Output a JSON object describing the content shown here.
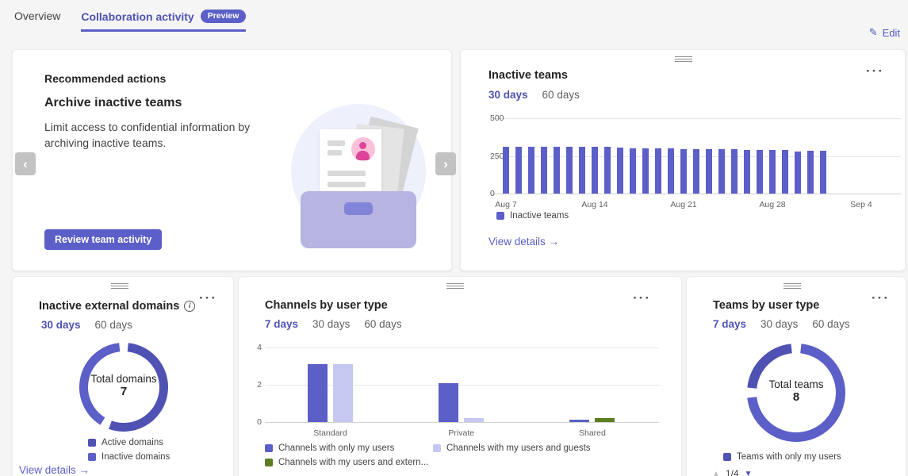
{
  "colors": {
    "accent": "#5b5fc7",
    "accent_dark": "#4f52b2",
    "lavender": "#c5c8f0",
    "green": "#5c7d21",
    "page_bg": "#f5f5f5"
  },
  "header": {
    "tabs": [
      {
        "label": "Overview"
      },
      {
        "label": "Collaboration activity",
        "badge": "Preview"
      }
    ],
    "edit_icon": "✎",
    "edit_label": "Edit"
  },
  "recommended_card": {
    "section_title": "Recommended actions",
    "title": "Archive inactive teams",
    "description": "Limit access to confidential information by archiving inactive teams.",
    "button_label": "Review team activity",
    "prev_icon": "‹",
    "next_icon": "›"
  },
  "inactive_teams_card": {
    "title": "Inactive teams",
    "more_icon": "···",
    "periods": [
      "30 days",
      "60 days"
    ],
    "active_period": "30 days",
    "legend": [
      {
        "label": "Inactive teams",
        "color": "#5b5fc7"
      }
    ],
    "view_details": "View details →"
  },
  "domains_card": {
    "title": "Inactive external domains",
    "info_icon": "i",
    "more_icon": "···",
    "periods": [
      "30 days",
      "60 days"
    ],
    "active_period": "30 days",
    "center_label": "Total domains",
    "center_value": "7",
    "legend": [
      {
        "label": "Active domains",
        "color": "#4f52b2"
      },
      {
        "label": "Inactive domains",
        "color": "#5b5fc7"
      }
    ],
    "view_details": "View details →"
  },
  "channels_card": {
    "title": "Channels by user type",
    "more_icon": "···",
    "periods": [
      "7 days",
      "30 days",
      "60 days"
    ],
    "active_period": "7 days",
    "legend": [
      {
        "label": "Channels with only my users",
        "color": "#5b5fc7"
      },
      {
        "label": "Channels with my users and guests",
        "color": "#c5c8f0"
      },
      {
        "label": "Channels with my users and extern...",
        "color": "#5c7d21"
      }
    ]
  },
  "teams_card": {
    "title": "Teams by user type",
    "more_icon": "···",
    "periods": [
      "7 days",
      "30 days",
      "60 days"
    ],
    "active_period": "7 days",
    "center_label": "Total teams",
    "center_value": "8",
    "legend": [
      {
        "label": "Teams with only my users",
        "color": "#4f52b2"
      }
    ],
    "pagination": {
      "up_icon": "▲",
      "page": "1/4",
      "down_icon": "▼"
    }
  },
  "chart_data": [
    {
      "type": "bar",
      "title": "Inactive teams",
      "period_shown": "30 days",
      "series_name": "Inactive teams",
      "color": "#5b5fc7",
      "values": [
        310,
        310,
        310,
        310,
        310,
        310,
        310,
        310,
        310,
        305,
        300,
        300,
        300,
        298,
        296,
        295,
        295,
        294,
        293,
        292,
        291,
        289,
        287,
        280,
        283,
        286
      ],
      "x_tick_labels": [
        "Aug 7",
        "Aug 14",
        "Aug 21",
        "Aug 28",
        "Sep 4"
      ],
      "x_tick_positions": [
        0,
        7,
        14,
        21,
        28
      ],
      "total_slots": 29,
      "ylim": [
        0,
        500
      ],
      "yticks": [
        0,
        250,
        500
      ],
      "legend_position": "bottom"
    },
    {
      "type": "pie",
      "variant": "donut",
      "title": "Inactive external domains",
      "period_shown": "30 days",
      "center_label": "Total domains",
      "total": 7,
      "segments": [
        {
          "name": "Active domains",
          "value": 4,
          "color": "#4f52b2"
        },
        {
          "name": "Inactive domains",
          "value": 3,
          "color": "#5b5fc7"
        }
      ]
    },
    {
      "type": "bar",
      "variant": "grouped",
      "title": "Channels by user type",
      "period_shown": "7 days",
      "categories": [
        "Standard",
        "Private",
        "Shared"
      ],
      "series": [
        {
          "name": "Channels with only my users",
          "color": "#5b5fc7",
          "values": [
            3.1,
            2.1,
            0.1
          ]
        },
        {
          "name": "Channels with my users and guests",
          "color": "#c5c8f0",
          "values": [
            3.1,
            0.2,
            0
          ]
        },
        {
          "name": "Channels with my users and extern...",
          "color": "#5c7d21",
          "values": [
            0,
            0,
            0.2
          ]
        }
      ],
      "ylim": [
        0,
        4
      ],
      "yticks": [
        0,
        2,
        4
      ],
      "legend_position": "bottom"
    },
    {
      "type": "pie",
      "variant": "donut",
      "title": "Teams by user type",
      "period_shown": "7 days",
      "center_label": "Total teams",
      "total": 8,
      "segments": [
        {
          "name": "Teams with only my users",
          "value": 6,
          "color": "#5b5fc7"
        },
        {
          "name": "",
          "value": 2,
          "color": "#4f52b2"
        }
      ]
    }
  ]
}
